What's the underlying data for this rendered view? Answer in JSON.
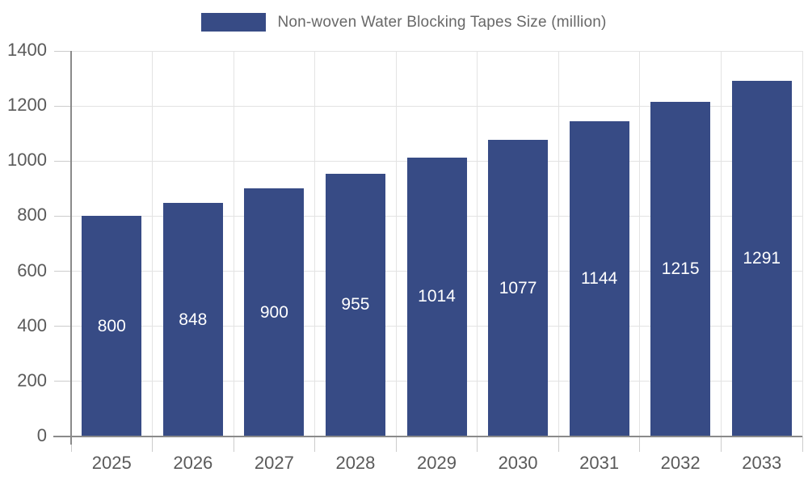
{
  "legend": {
    "label": "Non-woven Water Blocking Tapes Size (million)",
    "swatch_color": "#374B85"
  },
  "chart_data": {
    "type": "bar",
    "title": "Non-woven Water Blocking Tapes Size (million)",
    "categories": [
      "2025",
      "2026",
      "2027",
      "2028",
      "2029",
      "2030",
      "2031",
      "2032",
      "2033"
    ],
    "values": [
      800,
      848,
      900,
      955,
      1014,
      1077,
      1144,
      1215,
      1291
    ],
    "series": [
      {
        "name": "Non-woven Water Blocking Tapes Size (million)",
        "values": [
          800,
          848,
          900,
          955,
          1014,
          1077,
          1144,
          1215,
          1291
        ]
      }
    ],
    "xlabel": "",
    "ylabel": "",
    "ylim": [
      0,
      1400
    ],
    "yticks": [
      0,
      200,
      400,
      600,
      800,
      1000,
      1200,
      1400
    ],
    "grid": true,
    "legend_position": "top",
    "bar_color": "#374B85",
    "bar_label_color": "#ffffff",
    "axis_color": "#8a8a8a",
    "grid_color": "#e3e3e3",
    "tick_label_color": "#5a5a5a"
  }
}
